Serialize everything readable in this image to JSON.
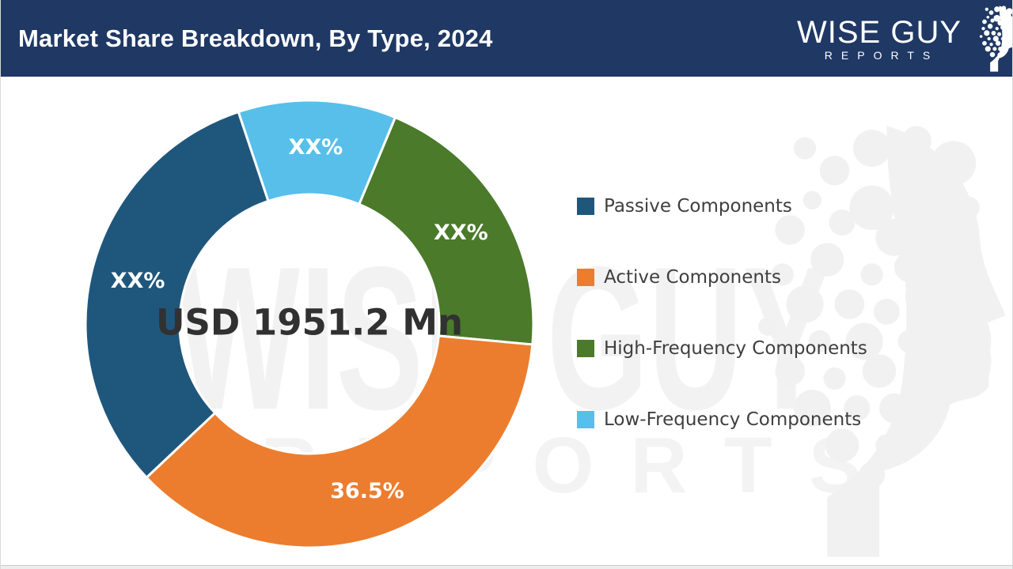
{
  "header": {
    "title": "Market Share Breakdown, By Type, 2024",
    "logo": {
      "line1": "WISE GUY",
      "line2": "REPORTS"
    }
  },
  "watermark": {
    "line1": "WISE GUY",
    "line2": "REPORTS"
  },
  "colors": {
    "header_bg": "#1F3864",
    "passive": "#1F577C",
    "active": "#EC7D2E",
    "high_frequency": "#4A7A2A",
    "low_frequency": "#57BFE9",
    "slice_label_text": "#FFFFFF",
    "center_text": "#313131",
    "legend_text": "#3F3F3F",
    "watermark_gray": "#F2F2F2"
  },
  "legend": {
    "position": "right",
    "items": [
      {
        "label": "Passive Components",
        "color": "#1F577C"
      },
      {
        "label": "Active Components",
        "color": "#EC7D2E"
      },
      {
        "label": "High-Frequency Components",
        "color": "#4A7A2A"
      },
      {
        "label": "Low-Frequency Components",
        "color": "#57BFE9"
      }
    ]
  },
  "chart_data": {
    "type": "pie",
    "subtype": "donut",
    "title": "Market Share Breakdown, By Type, 2024",
    "center_label": "USD 1951.2 Mn",
    "start_angle_deg": -18.5,
    "clockwise": true,
    "outer_radius_px": 283,
    "inner_radius_px": 164,
    "label_radius_fraction": 0.79,
    "segments": [
      {
        "name": "Low-Frequency Components",
        "value_pct": 11.4,
        "label": "XX%",
        "color": "#57BFE9"
      },
      {
        "name": "High-Frequency Components",
        "value_pct": 20.2,
        "label": "XX%",
        "color": "#4A7A2A"
      },
      {
        "name": "Active Components",
        "value_pct": 36.5,
        "label": "36.5%",
        "color": "#EC7D2E"
      },
      {
        "name": "Passive Components",
        "value_pct": 31.9,
        "label": "XX%",
        "color": "#1F577C"
      }
    ]
  }
}
